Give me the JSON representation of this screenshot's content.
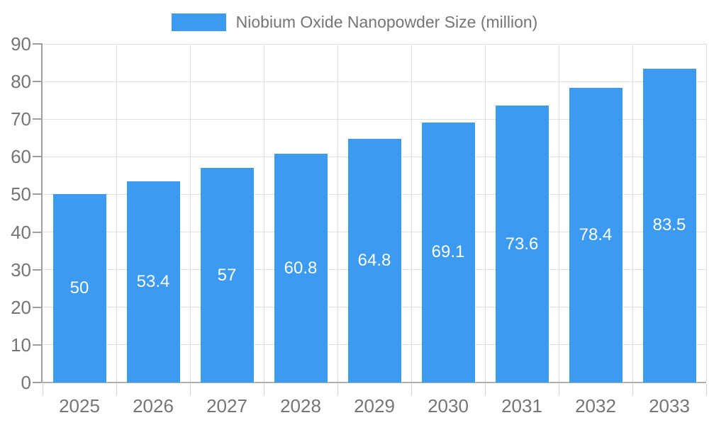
{
  "chart_data": {
    "type": "bar",
    "title": "",
    "legend": "Niobium Oxide Nanopowder Size (million)",
    "legend_position": "top",
    "categories": [
      "2025",
      "2026",
      "2027",
      "2028",
      "2029",
      "2030",
      "2031",
      "2032",
      "2033"
    ],
    "values": [
      50,
      53.4,
      57,
      60.8,
      64.8,
      69.1,
      73.6,
      78.4,
      83.5
    ],
    "value_labels": [
      "50",
      "53.4",
      "57",
      "60.8",
      "64.8",
      "69.1",
      "73.6",
      "78.4",
      "83.5"
    ],
    "xlabel": "",
    "ylabel": "",
    "ylim": [
      0,
      90
    ],
    "yticks": [
      0,
      10,
      20,
      30,
      40,
      50,
      60,
      70,
      80,
      90
    ],
    "grid": true,
    "colors": {
      "bar": "#3c9af0",
      "value_label": "#ffffff",
      "grid_line": "#e0e0e0",
      "x_tick": "#cfcfcf",
      "y_axis_line": "#9e9e9e",
      "x_axis_line": "#aeaeae",
      "tick_text": "#757575",
      "legend_text": "#757575",
      "background": "#ffffff"
    }
  }
}
